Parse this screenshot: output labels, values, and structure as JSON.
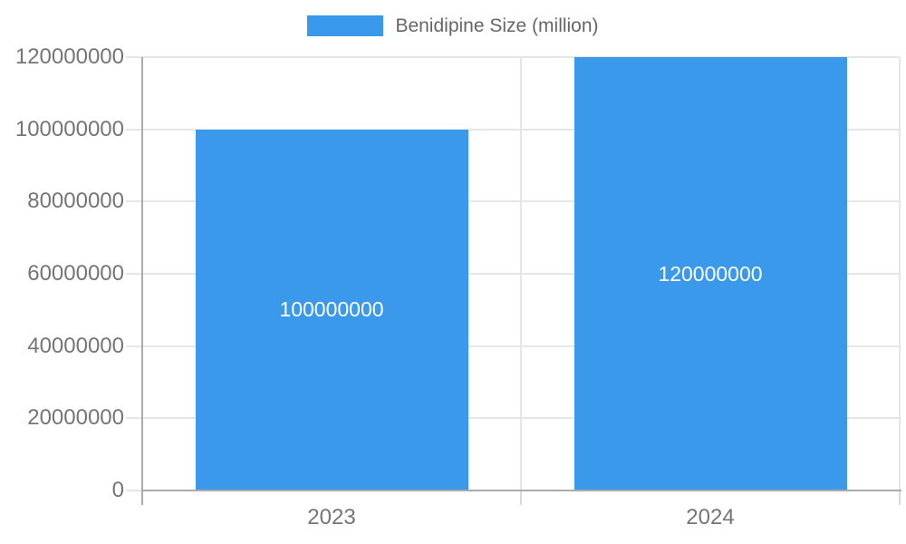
{
  "chart_data": {
    "type": "bar",
    "title": "",
    "legend": {
      "label": "Benidipine Size (million)",
      "position": "top-center"
    },
    "categories": [
      "2023",
      "2024"
    ],
    "series": [
      {
        "name": "Benidipine Size (million)",
        "values": [
          100000000,
          120000000
        ]
      }
    ],
    "data_labels": [
      "100000000",
      "120000000"
    ],
    "xlabel": "",
    "ylabel": "",
    "ylim": [
      0,
      120000000
    ],
    "ytick_step": 20000000,
    "yticks": [
      0,
      20000000,
      40000000,
      60000000,
      80000000,
      100000000,
      120000000
    ],
    "grid": true,
    "colors": {
      "bar": "#3b99ec",
      "gridline": "#e6e6e6",
      "boundary_tick": "#d9d9d9",
      "axis_line": "#ababab",
      "tick_label": "#757575",
      "legend_text": "#666666",
      "data_label": "#ffffff"
    }
  }
}
